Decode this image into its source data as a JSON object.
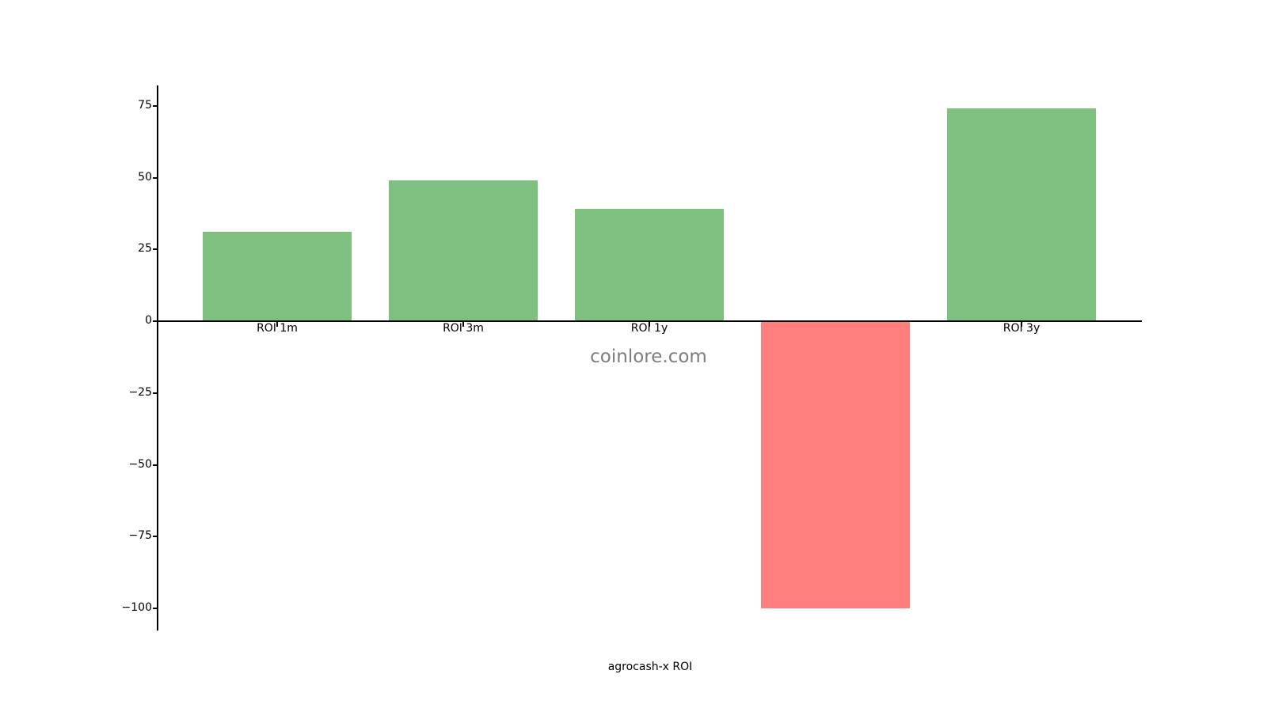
{
  "chart_data": {
    "type": "bar",
    "title": "agrocash-x ROI",
    "watermark": "coinlore.com",
    "categories": [
      "ROI 1m",
      "ROI 3m",
      "ROI 1y",
      "",
      "ROI 3y"
    ],
    "values": [
      31,
      49,
      39,
      -100,
      74
    ],
    "bar_colors": [
      "#7fbf7f",
      "#7fbf7f",
      "#7fbf7f",
      "#ff7f7f",
      "#7fbf7f"
    ],
    "positive_color": "#7fbf7f",
    "negative_color": "#ff7f7f",
    "yticks": [
      {
        "label": "75",
        "value": 75
      },
      {
        "label": "50",
        "value": 50
      },
      {
        "label": "25",
        "value": 25
      },
      {
        "label": "0",
        "value": 0
      },
      {
        "label": "−25",
        "value": -25
      },
      {
        "label": "−50",
        "value": -50
      },
      {
        "label": "−75",
        "value": -75
      },
      {
        "label": "−100",
        "value": -100
      }
    ],
    "ylim": [
      -108,
      82
    ],
    "xlabel": "",
    "ylabel": "",
    "grid": false,
    "legend": false,
    "axis_color": "#000000",
    "text_color": "#000000",
    "watermark_color": "#7d7d7d"
  }
}
